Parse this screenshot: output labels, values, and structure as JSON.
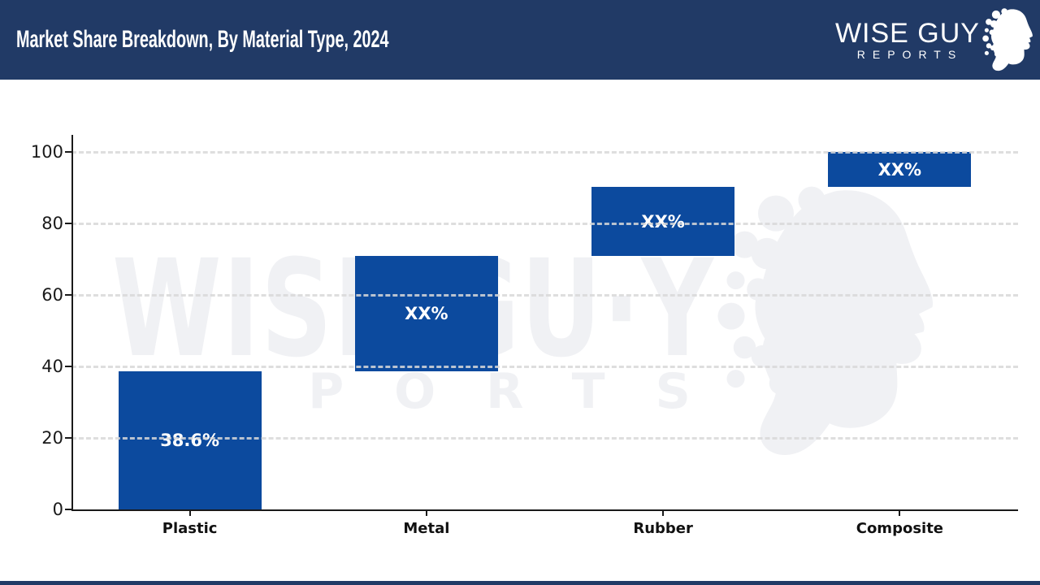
{
  "header": {
    "title": "Market Share Breakdown, By Material Type, 2024",
    "bg_color": "#213a66"
  },
  "logo": {
    "wordmark": "WISE GUY",
    "subtext": "REPORTS"
  },
  "watermark": {
    "line1": "WISE GU·Y",
    "line2": "REPORTS"
  },
  "chart_data": {
    "type": "bar",
    "subtype": "waterfall",
    "title": "Market Share Breakdown, By Material Type, 2024",
    "categories": [
      "Plastic",
      "Metal",
      "Rubber",
      "Composite"
    ],
    "segments": [
      {
        "category": "Plastic",
        "start": 0,
        "end": 38.6,
        "label": "38.6%"
      },
      {
        "category": "Metal",
        "start": 38.6,
        "end": 70.9,
        "label": "XX%"
      },
      {
        "category": "Rubber",
        "start": 70.9,
        "end": 90.2,
        "label": "XX%"
      },
      {
        "category": "Composite",
        "start": 90.2,
        "end": 100,
        "label": "XX%"
      }
    ],
    "xlabel": "",
    "ylabel": "",
    "ylim": [
      0,
      105
    ],
    "yticks": [
      0,
      20,
      40,
      60,
      80,
      100
    ],
    "grid": "horizontal-dashed",
    "legend": "none",
    "bar_color": "#0c4a9e",
    "bar_label_color": "#ffffff",
    "axis_color": "#1a1a1a",
    "gridline_color": "#d9d9d9"
  }
}
